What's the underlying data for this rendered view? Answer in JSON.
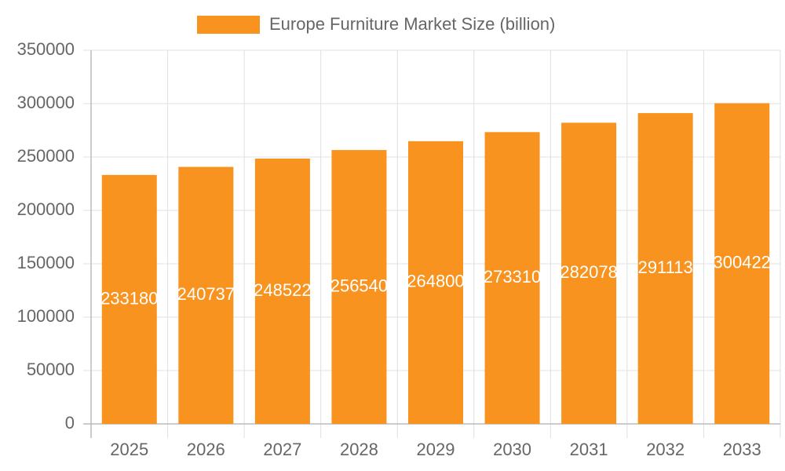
{
  "chart_data": {
    "type": "bar",
    "categories": [
      "2025",
      "2026",
      "2027",
      "2028",
      "2029",
      "2030",
      "2031",
      "2032",
      "2033"
    ],
    "series": [
      {
        "name": "Europe Furniture Market Size (billion)",
        "color": "#f7931e",
        "values": [
          233180,
          240737,
          248522,
          256540,
          264800,
          273310,
          282078,
          291113,
          300422
        ]
      }
    ],
    "ylim": [
      0,
      350000
    ],
    "yticks": [
      0,
      50000,
      100000,
      150000,
      200000,
      250000,
      300000,
      350000
    ],
    "grid": true,
    "legend": "top",
    "data_labels": true
  }
}
